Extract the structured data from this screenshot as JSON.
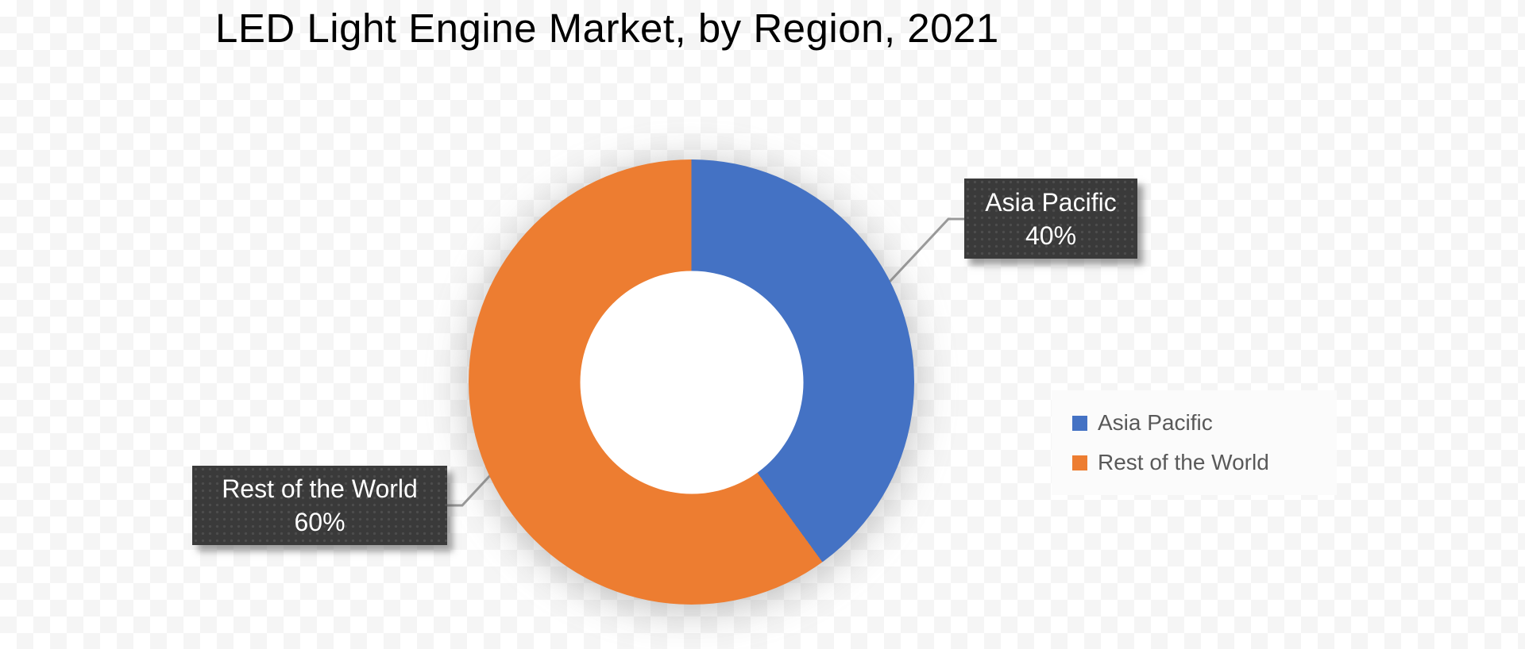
{
  "title": "LED Light Engine Market, by Region, 2021",
  "chart_data": {
    "type": "pie",
    "subtype": "donut",
    "title": "LED Light Engine Market, by Region, 2021",
    "categories": [
      "Asia Pacific",
      "Rest of the World"
    ],
    "values": [
      40,
      60
    ],
    "unit": "%",
    "colors": [
      "#4472C4",
      "#ED7D31"
    ],
    "start_angle_deg": 0,
    "direction": "clockwise",
    "donut_hole_ratio": 0.5,
    "legend_position": "right",
    "data_labels": [
      "Asia Pacific 40%",
      "Rest of the World 60%"
    ]
  },
  "callouts": [
    {
      "label": "Asia Pacific",
      "value": "40%"
    },
    {
      "label": "Rest of the World",
      "value": "60%"
    }
  ],
  "legend": {
    "items": [
      {
        "label": "Asia Pacific",
        "color": "#4472C4"
      },
      {
        "label": "Rest of the World",
        "color": "#ED7D31"
      }
    ]
  },
  "style": {
    "callout_background": "#3a3a3a",
    "callout_text_color": "#ffffff",
    "leader_line_color": "#999999",
    "legend_text_color": "#595959",
    "legend_panel_background": "#fbfbfb",
    "title_color": "#000000"
  }
}
